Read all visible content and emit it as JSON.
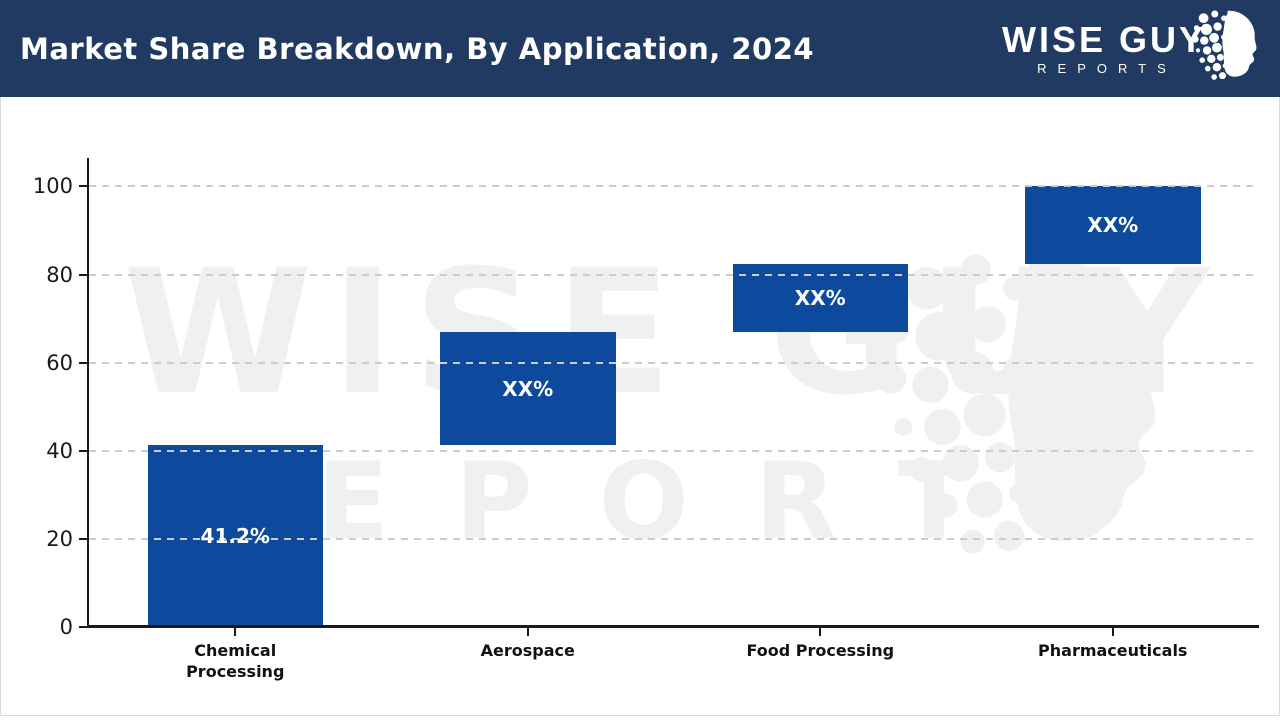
{
  "header": {
    "title": "Market Share Breakdown, By Application, 2024",
    "logo": {
      "wordmark": "WISE GUY",
      "subtext": "REPORTS"
    }
  },
  "watermark": {
    "wordmark": "WISE GUY",
    "subtext": "REPORTS"
  },
  "chart_data": {
    "type": "bar",
    "subtype": "waterfall",
    "title": "Market Share Breakdown, By Application, 2024",
    "categories": [
      "Chemical Processing",
      "Aerospace",
      "Food Processing",
      "Pharmaceuticals"
    ],
    "xtick_labels": [
      "Chemical\nProcessing",
      "Aerospace",
      "Food Processing",
      "Pharmaceuticals"
    ],
    "segments": [
      {
        "category": "Chemical Processing",
        "start": 0,
        "end": 41.2,
        "value_label": "41.2%"
      },
      {
        "category": "Aerospace",
        "start": 41.2,
        "end": 67,
        "value_label": "XX%"
      },
      {
        "category": "Food Processing",
        "start": 67,
        "end": 82.5,
        "value_label": "XX%"
      },
      {
        "category": "Pharmaceuticals",
        "start": 82.5,
        "end": 100,
        "value_label": "XX%"
      }
    ],
    "y_ticks": [
      0,
      20,
      40,
      60,
      80,
      100
    ],
    "ylim": [
      0,
      106
    ],
    "xlabel": "",
    "ylabel": "",
    "grid": {
      "horizontal": true,
      "style": "dashed",
      "drawn_above_bars": true
    },
    "legend": "none",
    "bar_color": "#0d4a9e",
    "bar_label_color": "#ffffff",
    "axis_color": "#1a1a1a",
    "grid_color": "#cccccc"
  },
  "colors": {
    "header_bg": "#203a61",
    "header_text": "#ffffff",
    "watermark": "#f0f0f2",
    "page_bg": "#ffffff",
    "border": "#d9d9d9"
  }
}
